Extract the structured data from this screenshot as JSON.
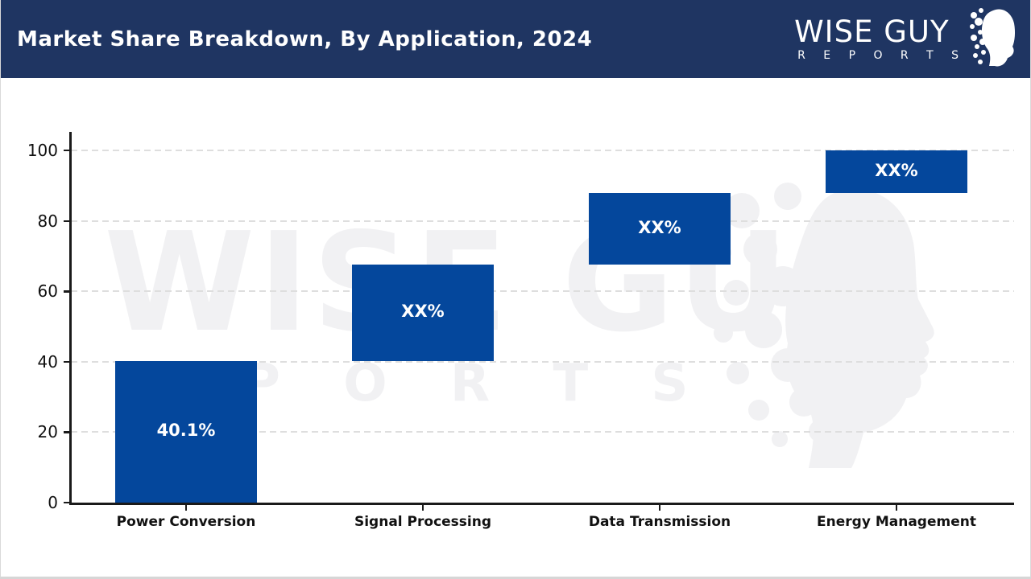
{
  "header": {
    "title": "Market Share Breakdown, By Application, 2024",
    "bg_color": "#1f3562",
    "logo": {
      "line1": "WISE GUY",
      "line2": "R E P O R T S"
    }
  },
  "watermark": {
    "line1": "WISE GU",
    "line2": "P O R T S"
  },
  "chart_data": {
    "type": "bar",
    "variant": "waterfall",
    "title": "Market Share Breakdown, By Application, 2024",
    "categories": [
      "Power Conversion",
      "Signal Processing",
      "Data Transmission",
      "Energy Management"
    ],
    "segments": [
      {
        "category": "Power Conversion",
        "start": 0,
        "end": 40.1,
        "label": "40.1%"
      },
      {
        "category": "Signal Processing",
        "start": 40.1,
        "end": 67.5,
        "label": "XX%"
      },
      {
        "category": "Data Transmission",
        "start": 67.5,
        "end": 87.8,
        "label": "XX%"
      },
      {
        "category": "Energy Management",
        "start": 87.8,
        "end": 100,
        "label": "XX%"
      }
    ],
    "ylim": [
      0,
      100
    ],
    "yticks": [
      0,
      20,
      40,
      60,
      80,
      100
    ],
    "grid": {
      "axis": "y",
      "style": "dashed",
      "color": "#dedede"
    },
    "bar_color": "#04479c",
    "bar_label_color": "#ffffff",
    "axis_color": "#1a1a1a",
    "legend": "none"
  }
}
